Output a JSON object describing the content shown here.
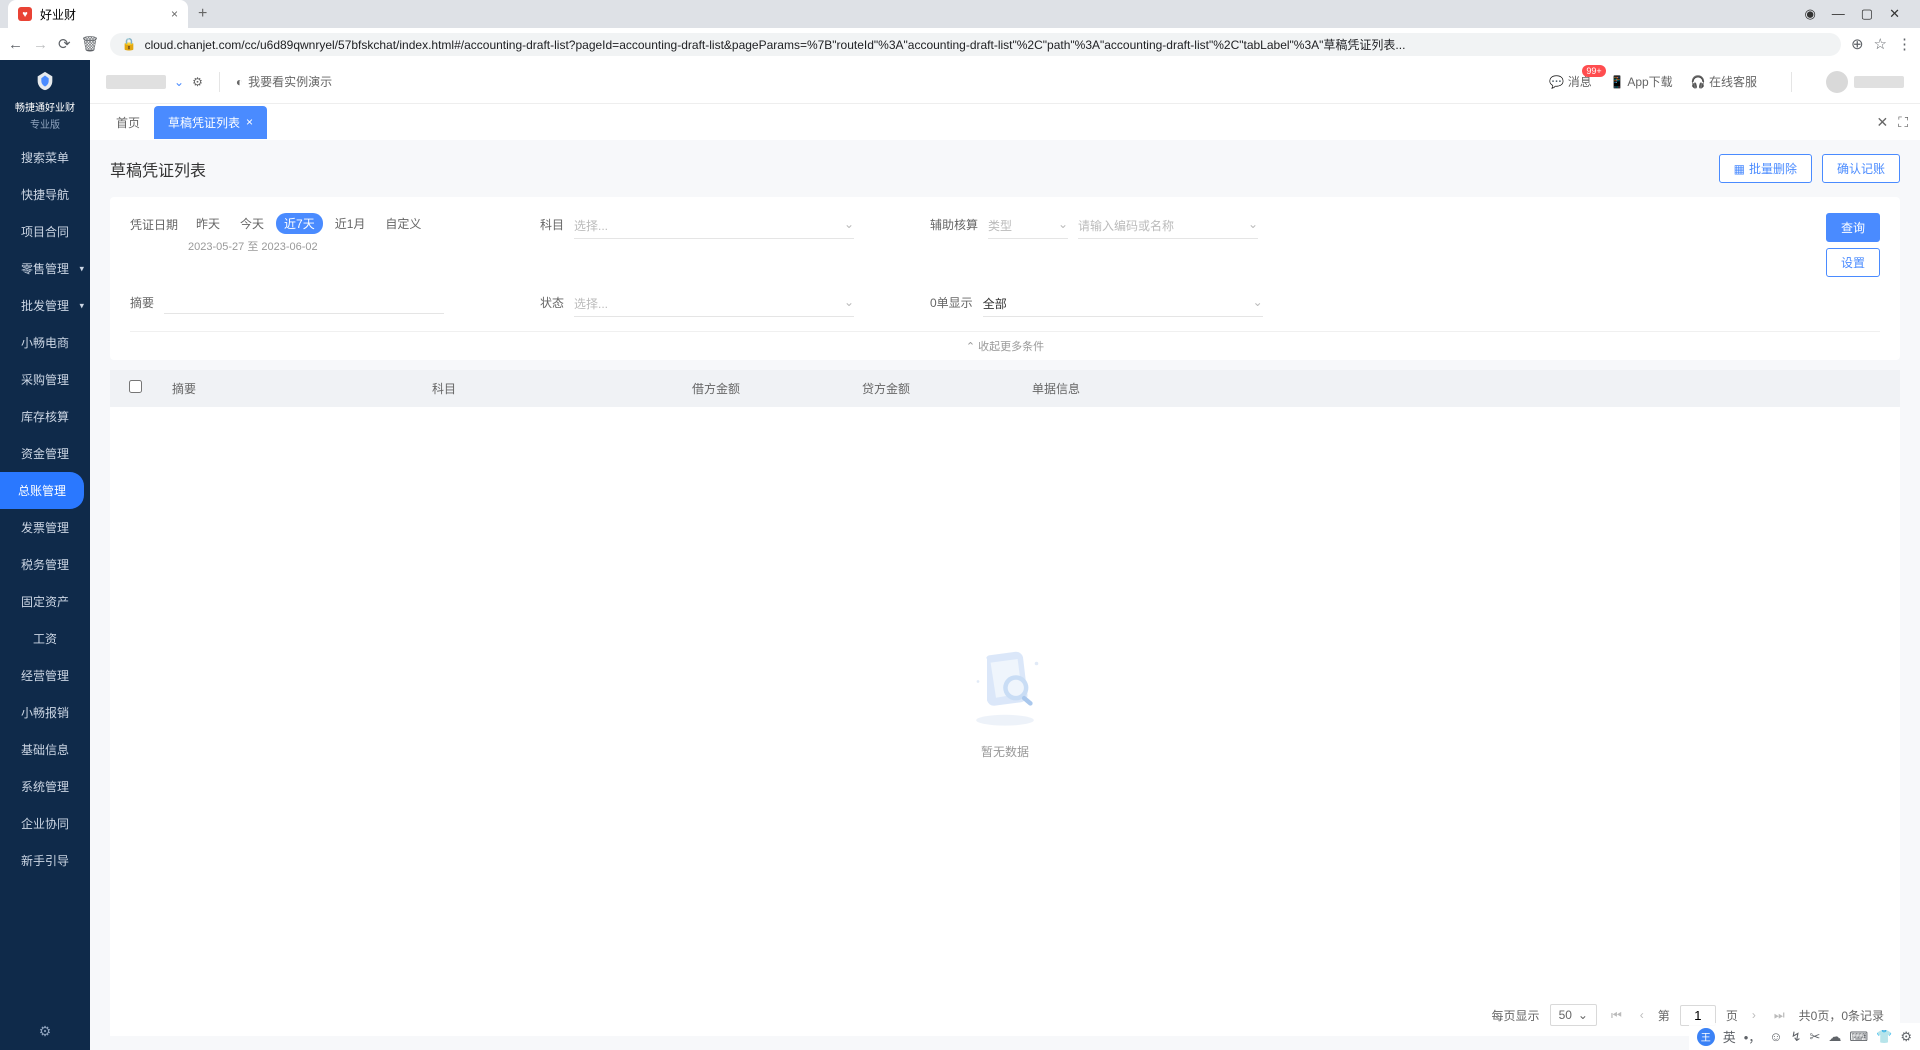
{
  "browser": {
    "tab_title": "好业财",
    "url_display": "cloud.chanjet.com/cc/u6d89qwnryel/57bfskchat/index.html#/accounting-draft-list?pageId=accounting-draft-list&pageParams=%7B\"routeId\"%3A\"accounting-draft-list\"%2C\"path\"%3A\"accounting-draft-list\"%2C\"tabLabel\"%3A\"草稿凭证列表..."
  },
  "logo": {
    "brand": "畅捷通好业财",
    "edition": "专业版"
  },
  "sidebar": {
    "items": [
      {
        "label": "搜索菜单",
        "expandable": false
      },
      {
        "label": "快捷导航",
        "expandable": false
      },
      {
        "label": "项目合同",
        "expandable": false
      },
      {
        "label": "零售管理",
        "expandable": true
      },
      {
        "label": "批发管理",
        "expandable": true
      },
      {
        "label": "小畅电商",
        "expandable": false
      },
      {
        "label": "采购管理",
        "expandable": false
      },
      {
        "label": "库存核算",
        "expandable": false
      },
      {
        "label": "资金管理",
        "expandable": false
      },
      {
        "label": "总账管理",
        "expandable": false,
        "active": true
      },
      {
        "label": "发票管理",
        "expandable": false
      },
      {
        "label": "税务管理",
        "expandable": false
      },
      {
        "label": "固定资产",
        "expandable": false
      },
      {
        "label": "工资",
        "expandable": false
      },
      {
        "label": "经营管理",
        "expandable": false
      },
      {
        "label": "小畅报销",
        "expandable": false
      },
      {
        "label": "基础信息",
        "expandable": false
      },
      {
        "label": "系统管理",
        "expandable": false
      },
      {
        "label": "企业协同",
        "expandable": false
      },
      {
        "label": "新手引导",
        "expandable": false
      }
    ]
  },
  "topbar": {
    "demo": "我要看实例演示",
    "msg": "消息",
    "msg_badge": "99+",
    "download": "App下载",
    "service": "在线客服"
  },
  "tabs": {
    "home": "首页",
    "active": "草稿凭证列表"
  },
  "page": {
    "title": "草稿凭证列表",
    "batch_delete": "批量删除",
    "confirm": "确认记账",
    "query": "查询",
    "settings": "设置"
  },
  "filters": {
    "date_label": "凭证日期",
    "chips": [
      "昨天",
      "今天",
      "近7天",
      "近1月",
      "自定义"
    ],
    "chip_active": "近7天",
    "date_range": "2023-05-27 至 2023-06-02",
    "subject_label": "科目",
    "subject_placeholder": "选择...",
    "summary_label": "摘要",
    "aux_label": "辅助核算",
    "aux_type_placeholder": "类型",
    "aux_code_placeholder": "请输入编码或名称",
    "status_label": "状态",
    "status_placeholder": "选择...",
    "zero_label": "0单显示",
    "zero_value": "全部",
    "collapse": "收起更多条件"
  },
  "table": {
    "columns": [
      "摘要",
      "科目",
      "借方金额",
      "贷方金额",
      "单据信息"
    ],
    "col_widths": [
      "260px",
      "260px",
      "170px",
      "170px",
      "auto"
    ],
    "empty_text": "暂无数据"
  },
  "pagination": {
    "per_page_label": "每页显示",
    "per_page_value": "50",
    "page_label_prefix": "第",
    "page_value": "1",
    "page_label_suffix": "页",
    "summary": "共0页，0条记录"
  },
  "ime": {
    "lang": "英"
  }
}
